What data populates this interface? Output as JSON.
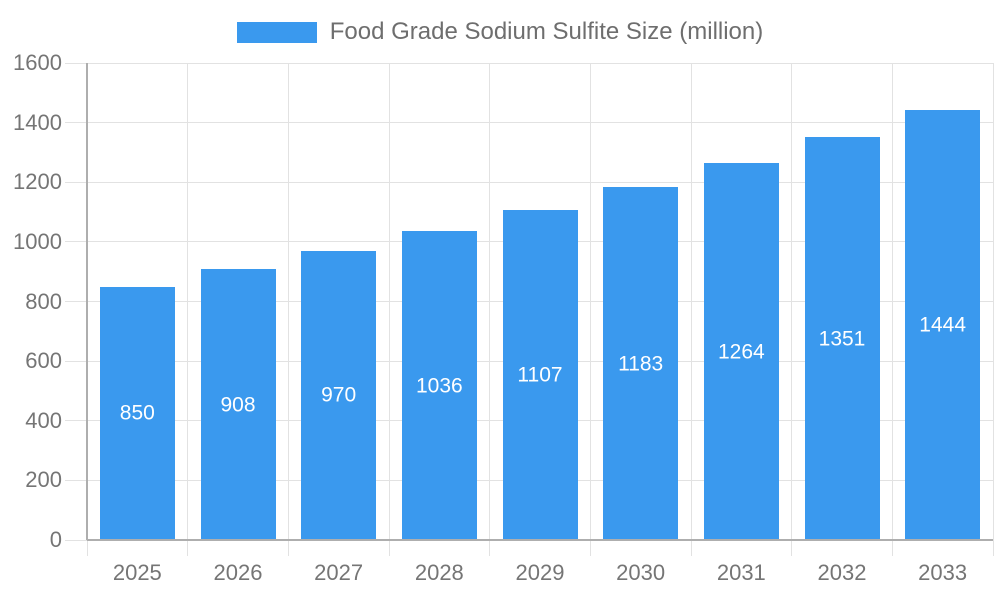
{
  "legend": {
    "label": "Food Grade Sodium Sulfite Size (million)"
  },
  "colors": {
    "bar": "#3a99ee",
    "grid": "#e2e2e2",
    "axis": "#aeaeae",
    "tick_label": "#757575",
    "legend_label": "#6e6e6e",
    "value_label": "#ffffff",
    "background": "#ffffff"
  },
  "chart_data": {
    "type": "bar",
    "title": "Food Grade Sodium Sulfite Size (million)",
    "categories": [
      "2025",
      "2026",
      "2027",
      "2028",
      "2029",
      "2030",
      "2031",
      "2032",
      "2033"
    ],
    "values": [
      850,
      908,
      970,
      1036,
      1107,
      1183,
      1264,
      1351,
      1444
    ],
    "series": [
      {
        "name": "Food Grade Sodium Sulfite Size (million)",
        "values": [
          850,
          908,
          970,
          1036,
          1107,
          1183,
          1264,
          1351,
          1444
        ]
      }
    ],
    "xlabel": "",
    "ylabel": "",
    "ylim": [
      0,
      1600
    ],
    "yticks": [
      0,
      200,
      400,
      600,
      800,
      1000,
      1200,
      1400,
      1600
    ],
    "grid": "both",
    "legend_position": "top",
    "value_labels": "inside-center"
  }
}
